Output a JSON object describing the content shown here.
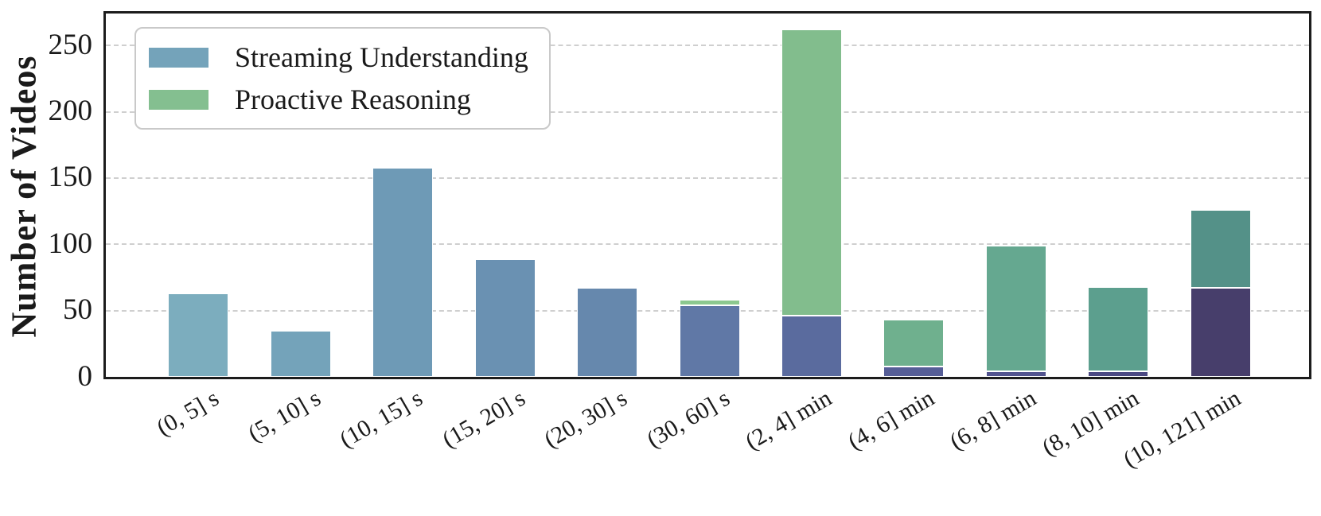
{
  "chart_data": {
    "type": "bar",
    "stacked": true,
    "title": "",
    "xlabel": "",
    "ylabel": "Number of Videos",
    "ylim": [
      0,
      277
    ],
    "yticks": [
      0,
      50,
      100,
      150,
      200,
      250
    ],
    "grid": "horizontal dashed",
    "grid_color": "#cfcfcf",
    "axis_color": "#1c1c1c",
    "categories": [
      "(0, 5] s",
      "(5, 10] s",
      "(10, 15] s",
      "(15, 20] s",
      "(20, 30] s",
      "(30, 60] s",
      "(2, 4] min",
      "(4, 6] min",
      "(6, 8] min",
      "(8, 10] min",
      "(10, 121] min"
    ],
    "series": [
      {
        "name": "Streaming Understanding",
        "values": [
          63,
          35,
          158,
          89,
          67,
          54,
          46,
          8,
          4,
          4,
          67
        ],
        "colors": [
          "#7cadbe",
          "#74a3ba",
          "#6e9ab6",
          "#6a91b2",
          "#6688ad",
          "#6078a6",
          "#5a6b9e",
          "#565e97",
          "#52548f",
          "#4b4983",
          "#473e6b"
        ]
      },
      {
        "name": "Proactive Reasoning",
        "values": [
          0,
          0,
          0,
          0,
          0,
          4,
          216,
          35,
          95,
          64,
          59
        ],
        "colors": [
          "#8cc88f",
          "#8cc88f",
          "#8cc88f",
          "#8cc88f",
          "#8cc88f",
          "#8cc88f",
          "#82bd8d",
          "#6fb08e",
          "#65a890",
          "#5c9f8e",
          "#549188"
        ]
      }
    ],
    "legend": {
      "position": "upper left",
      "entries": [
        {
          "label": "Streaming Understanding",
          "swatch_color": "#74a3ba"
        },
        {
          "label": "Proactive Reasoning",
          "swatch_color": "#84bf90"
        }
      ]
    }
  }
}
